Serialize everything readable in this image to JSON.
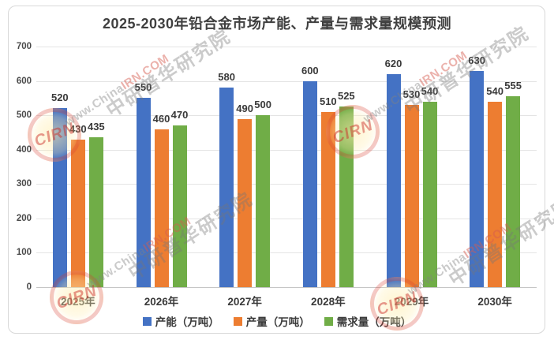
{
  "chart_data": {
    "type": "bar",
    "title": "2025-2030年铅合金市场产能、产量与需求量规模预测",
    "categories": [
      "2025年",
      "2026年",
      "2027年",
      "2028年",
      "2029年",
      "2030年"
    ],
    "series": [
      {
        "name": "产能（万吨）",
        "color": "#4472C4",
        "values": [
          520,
          550,
          580,
          600,
          620,
          630
        ]
      },
      {
        "name": "产量（万吨）",
        "color": "#ED7D31",
        "values": [
          430,
          460,
          490,
          510,
          530,
          540
        ]
      },
      {
        "name": "需求量（万吨）",
        "color": "#70AD47",
        "values": [
          435,
          470,
          500,
          525,
          540,
          555
        ]
      }
    ],
    "ylim": [
      0,
      700
    ],
    "yticks": [
      0,
      100,
      200,
      300,
      400,
      500,
      600,
      700
    ],
    "grid": true,
    "legend_position": "bottom",
    "value_labels_shown": true
  },
  "watermark": {
    "logo_text": "CIRN",
    "url_prefix": "www.China",
    "url_suffix": "IRN.COM",
    "org_text": "中研普华研究院"
  }
}
